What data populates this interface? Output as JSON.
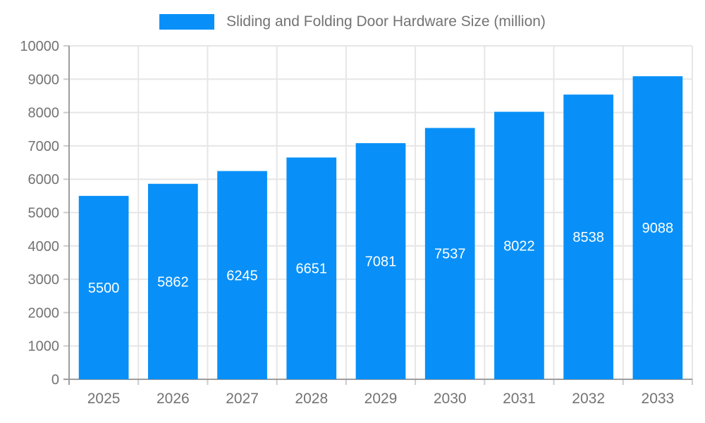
{
  "legend": {
    "label": "Sliding and Folding Door Hardware Size (million)"
  },
  "chart_data": {
    "type": "bar",
    "title": "Sliding and Folding Door Hardware Size (million)",
    "categories": [
      "2025",
      "2026",
      "2027",
      "2028",
      "2029",
      "2030",
      "2031",
      "2032",
      "2033"
    ],
    "values": [
      5500,
      5862,
      6245,
      6651,
      7081,
      7537,
      8022,
      8538,
      9088
    ],
    "xlabel": "",
    "ylabel": "",
    "ylim": [
      0,
      10000
    ],
    "ytick_step": 1000,
    "grid": true,
    "legend_position": "top",
    "value_labels": "centered inside bars"
  },
  "colors": {
    "bar": "#0890F8",
    "grid": "#E6E6E6",
    "tick": "#CCCCCC",
    "axis": "#9E9E9E",
    "tick_label": "#737373",
    "value_label": "#FFFFFF",
    "title": "#737373",
    "background": "#FFFFFF"
  }
}
